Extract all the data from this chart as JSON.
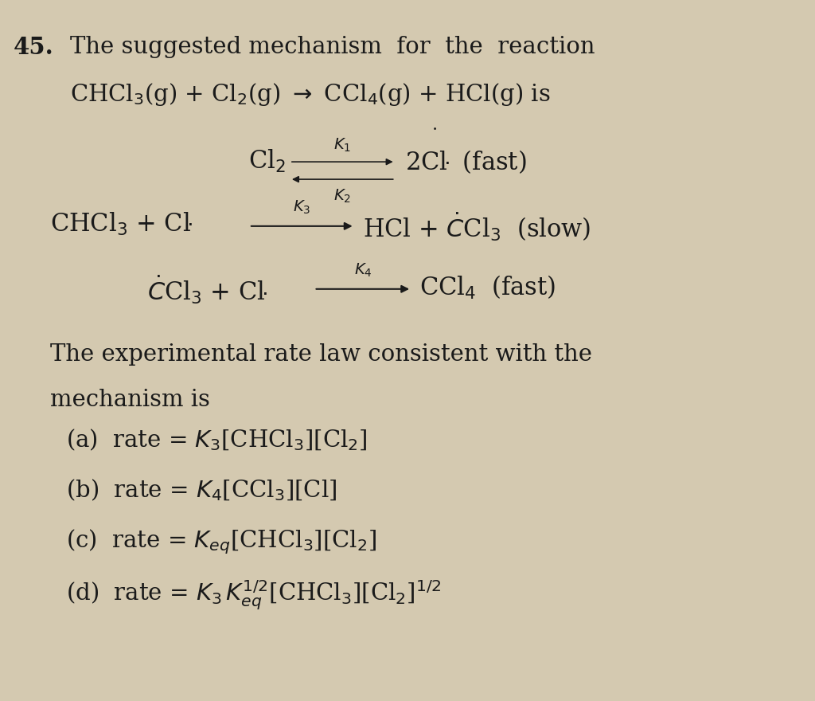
{
  "background_color": "#d4c9b0",
  "text_color": "#1a1a1a",
  "title_number": "45.",
  "title_text": "The suggested mechanism for the reaction",
  "reaction_line": "CHCl₃(g) + Cl₂(g) → CCl₄(g) + HCl(g) is",
  "step1": "Cl₂  ⇌  2Cl·  (fast)",
  "step2": "CHCl₃ + Cl·  →  HCl + ẌCl₃  (slow)",
  "step3": "ẌCl₃ + Cl·  →  CCl₄  (fast)",
  "desc": "The experimental rate law consistent with the mechanism is",
  "opt_a": "(a)  rate = K₃[CHCl₃][Cl₂]",
  "opt_b": "(b)  rate = K₄[CCl₃][Cl]",
  "opt_c": "(c)  rate = Kₑᵣ[CHCl₃][Cl₂]",
  "opt_d": "(d)  rate = K₃ Kₑᵣ¹ᐟ²[CHCl₃][Cl₂]¹ᐟ²",
  "fontsize_title": 22,
  "fontsize_body": 21,
  "fontsize_eq": 22
}
